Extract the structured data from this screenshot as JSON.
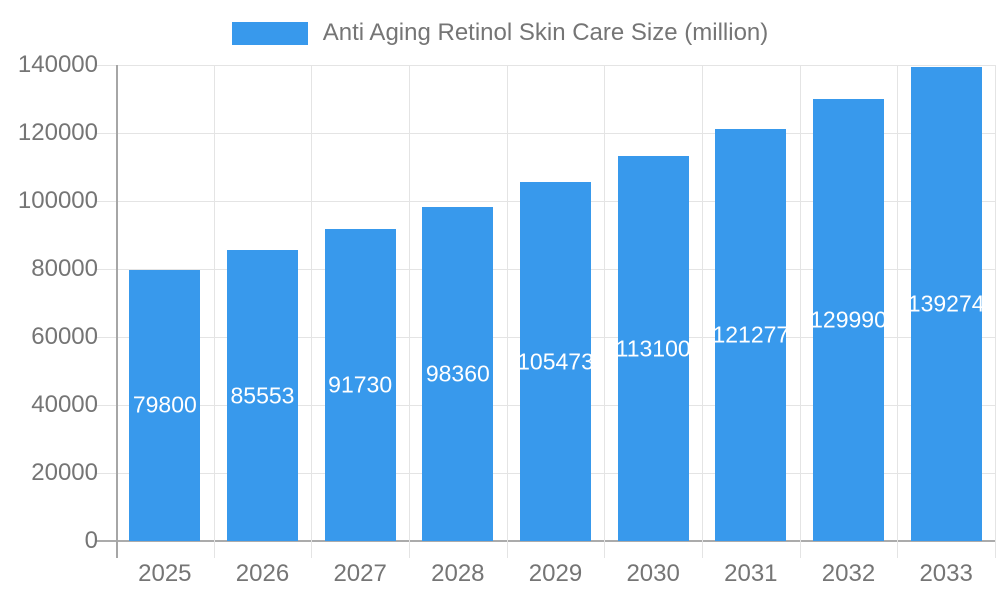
{
  "chart_data": {
    "type": "bar",
    "title": "Anti Aging Retinol Skin Care Size (million)",
    "categories": [
      "2025",
      "2026",
      "2027",
      "2028",
      "2029",
      "2030",
      "2031",
      "2032",
      "2033"
    ],
    "series": [
      {
        "name": "Anti Aging Retinol Skin Care Size (million)",
        "values": [
          79800,
          85553,
          91730,
          98360,
          105473,
          113100,
          121277,
          129990,
          139274
        ]
      }
    ],
    "value_labels": [
      "79800",
      "85553",
      "91730",
      "98360",
      "105473",
      "113100",
      "121277",
      "129990",
      "139274"
    ],
    "xlabel": "",
    "ylabel": "",
    "ylim": [
      0,
      140000
    ],
    "yticks": [
      0,
      20000,
      40000,
      60000,
      80000,
      100000,
      120000,
      140000
    ],
    "grid": true,
    "legend_position": "top",
    "colors": {
      "bar": "#3899EC",
      "value_label": "#FFFFFF",
      "axis_text": "#757575",
      "gridline": "#E4E4E4",
      "axis_line": "#ABABAB"
    }
  }
}
